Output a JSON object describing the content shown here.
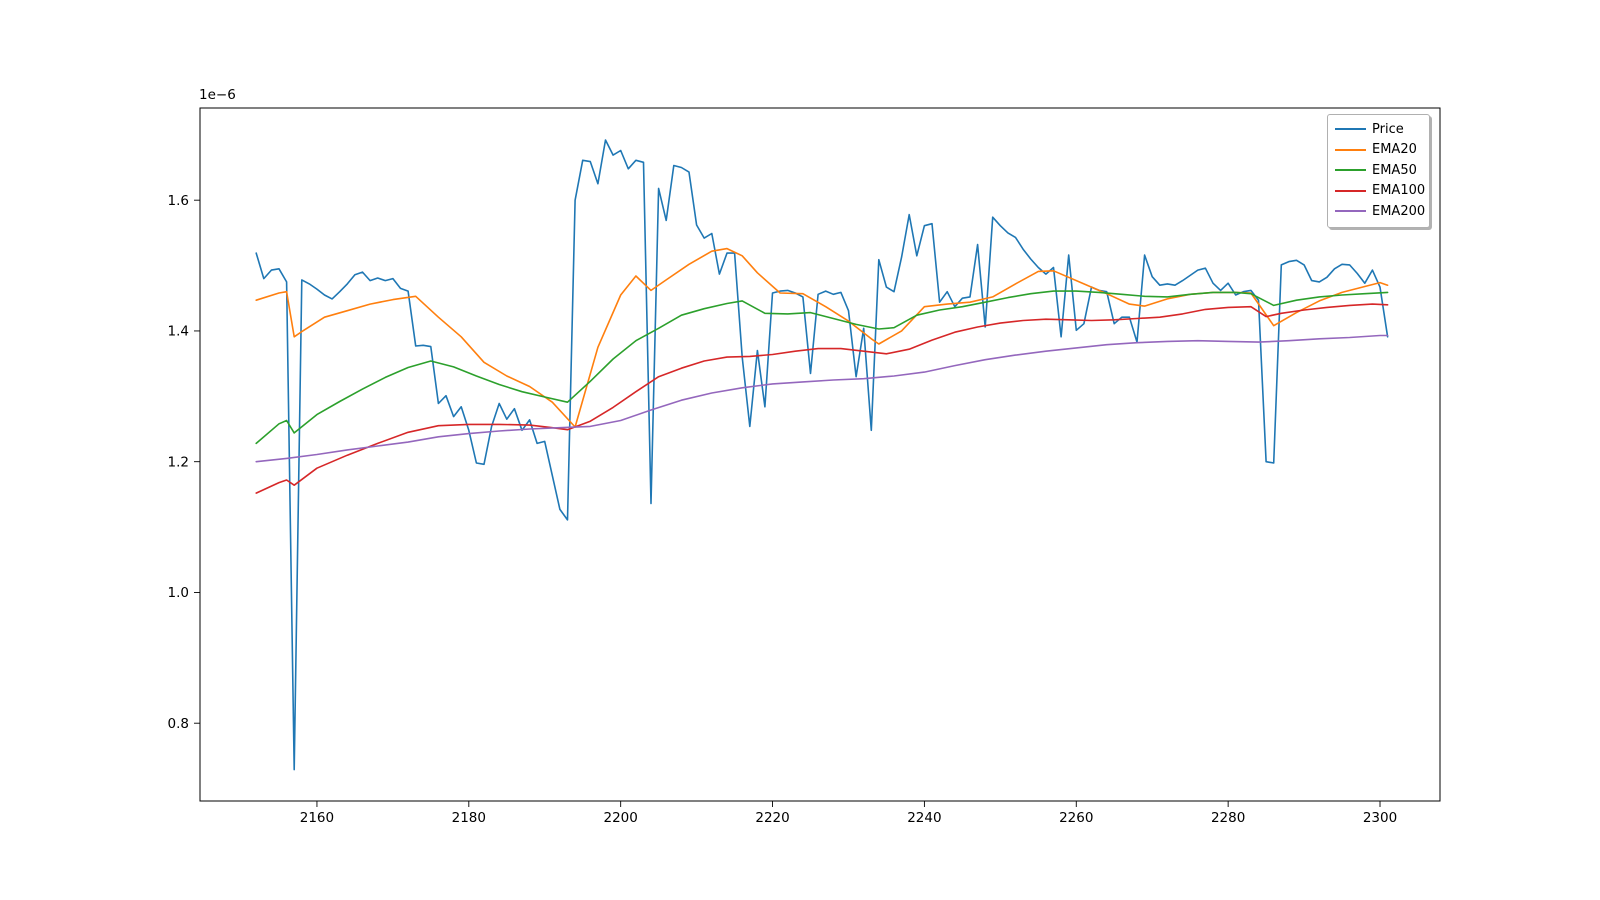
{
  "chart_data": {
    "type": "line",
    "title": "",
    "xlabel": "",
    "ylabel": "",
    "y_offset_label": "1e−6",
    "xlim": [
      2144.6,
      2307.9
    ],
    "ylim": [
      0.681,
      1.741
    ],
    "xticks": [
      2160,
      2180,
      2200,
      2220,
      2240,
      2260,
      2280,
      2300
    ],
    "yticks": [
      0.8,
      1.0,
      1.2,
      1.4,
      1.6
    ],
    "grid": false,
    "legend_position": "upper right",
    "axis_color": "#000000",
    "background_color": "#ffffff",
    "series": [
      {
        "name": "Price",
        "color": "#1f77b4",
        "x_start": 2152,
        "x_step": 1,
        "values": [
          1.519,
          1.48,
          1.493,
          1.495,
          1.475,
          0.729,
          1.478,
          1.472,
          1.464,
          1.455,
          1.449,
          1.46,
          1.472,
          1.486,
          1.49,
          1.477,
          1.481,
          1.477,
          1.48,
          1.465,
          1.461,
          1.377,
          1.378,
          1.376,
          1.289,
          1.301,
          1.269,
          1.284,
          1.248,
          1.198,
          1.196,
          1.254,
          1.289,
          1.265,
          1.281,
          1.248,
          1.264,
          1.228,
          1.231,
          1.179,
          1.127,
          1.111,
          1.6,
          1.661,
          1.659,
          1.625,
          1.692,
          1.669,
          1.676,
          1.648,
          1.661,
          1.658,
          1.136,
          1.618,
          1.569,
          1.653,
          1.65,
          1.643,
          1.562,
          1.542,
          1.549,
          1.487,
          1.519,
          1.519,
          1.36,
          1.254,
          1.37,
          1.284,
          1.458,
          1.461,
          1.462,
          1.458,
          1.452,
          1.335,
          1.456,
          1.461,
          1.456,
          1.459,
          1.431,
          1.33,
          1.404,
          1.248,
          1.509,
          1.467,
          1.46,
          1.513,
          1.578,
          1.515,
          1.561,
          1.564,
          1.444,
          1.46,
          1.437,
          1.45,
          1.452,
          1.532,
          1.406,
          1.574,
          1.561,
          1.55,
          1.543,
          1.525,
          1.51,
          1.497,
          1.487,
          1.497,
          1.391,
          1.516,
          1.401,
          1.411,
          1.467,
          1.462,
          1.46,
          1.411,
          1.421,
          1.421,
          1.383,
          1.516,
          1.483,
          1.47,
          1.472,
          1.47,
          1.477,
          1.485,
          1.493,
          1.496,
          1.473,
          1.462,
          1.473,
          1.455,
          1.46,
          1.462,
          1.447,
          1.2,
          1.198,
          1.501,
          1.506,
          1.508,
          1.501,
          1.477,
          1.475,
          1.482,
          1.495,
          1.502,
          1.501,
          1.488,
          1.473,
          1.493,
          1.467,
          1.391
        ]
      },
      {
        "name": "EMA20",
        "color": "#ff7f0e",
        "points": [
          [
            2152,
            1.447
          ],
          [
            2155,
            1.458
          ],
          [
            2156,
            1.46
          ],
          [
            2157,
            1.391
          ],
          [
            2158,
            1.399
          ],
          [
            2161,
            1.421
          ],
          [
            2164,
            1.431
          ],
          [
            2167,
            1.441
          ],
          [
            2170,
            1.448
          ],
          [
            2173,
            1.453
          ],
          [
            2176,
            1.421
          ],
          [
            2179,
            1.391
          ],
          [
            2182,
            1.352
          ],
          [
            2185,
            1.331
          ],
          [
            2188,
            1.315
          ],
          [
            2191,
            1.291
          ],
          [
            2194,
            1.253
          ],
          [
            2197,
            1.375
          ],
          [
            2200,
            1.455
          ],
          [
            2202,
            1.484
          ],
          [
            2204,
            1.462
          ],
          [
            2206,
            1.478
          ],
          [
            2209,
            1.502
          ],
          [
            2212,
            1.522
          ],
          [
            2214,
            1.526
          ],
          [
            2216,
            1.515
          ],
          [
            2218,
            1.489
          ],
          [
            2221,
            1.458
          ],
          [
            2224,
            1.457
          ],
          [
            2227,
            1.437
          ],
          [
            2230,
            1.415
          ],
          [
            2233,
            1.388
          ],
          [
            2234,
            1.38
          ],
          [
            2237,
            1.4
          ],
          [
            2240,
            1.437
          ],
          [
            2243,
            1.441
          ],
          [
            2246,
            1.444
          ],
          [
            2249,
            1.452
          ],
          [
            2252,
            1.472
          ],
          [
            2255,
            1.491
          ],
          [
            2257,
            1.492
          ],
          [
            2261,
            1.472
          ],
          [
            2264,
            1.457
          ],
          [
            2267,
            1.441
          ],
          [
            2269,
            1.438
          ],
          [
            2272,
            1.449
          ],
          [
            2275,
            1.456
          ],
          [
            2278,
            1.459
          ],
          [
            2281,
            1.459
          ],
          [
            2283,
            1.458
          ],
          [
            2286,
            1.408
          ],
          [
            2289,
            1.428
          ],
          [
            2292,
            1.446
          ],
          [
            2295,
            1.459
          ],
          [
            2298,
            1.468
          ],
          [
            2300,
            1.474
          ],
          [
            2301,
            1.47
          ]
        ]
      },
      {
        "name": "EMA50",
        "color": "#2ca02c",
        "points": [
          [
            2152,
            1.228
          ],
          [
            2155,
            1.258
          ],
          [
            2156,
            1.263
          ],
          [
            2157,
            1.244
          ],
          [
            2160,
            1.272
          ],
          [
            2163,
            1.292
          ],
          [
            2166,
            1.311
          ],
          [
            2169,
            1.329
          ],
          [
            2172,
            1.344
          ],
          [
            2175,
            1.354
          ],
          [
            2178,
            1.345
          ],
          [
            2181,
            1.331
          ],
          [
            2184,
            1.318
          ],
          [
            2187,
            1.307
          ],
          [
            2190,
            1.299
          ],
          [
            2193,
            1.291
          ],
          [
            2196,
            1.323
          ],
          [
            2199,
            1.357
          ],
          [
            2202,
            1.385
          ],
          [
            2205,
            1.404
          ],
          [
            2208,
            1.424
          ],
          [
            2211,
            1.434
          ],
          [
            2214,
            1.442
          ],
          [
            2216,
            1.446
          ],
          [
            2219,
            1.427
          ],
          [
            2222,
            1.426
          ],
          [
            2225,
            1.428
          ],
          [
            2228,
            1.419
          ],
          [
            2231,
            1.41
          ],
          [
            2234,
            1.403
          ],
          [
            2236,
            1.405
          ],
          [
            2239,
            1.424
          ],
          [
            2242,
            1.432
          ],
          [
            2245,
            1.437
          ],
          [
            2248,
            1.444
          ],
          [
            2251,
            1.451
          ],
          [
            2254,
            1.457
          ],
          [
            2257,
            1.461
          ],
          [
            2260,
            1.461
          ],
          [
            2263,
            1.459
          ],
          [
            2266,
            1.456
          ],
          [
            2269,
            1.453
          ],
          [
            2272,
            1.452
          ],
          [
            2275,
            1.456
          ],
          [
            2278,
            1.459
          ],
          [
            2281,
            1.459
          ],
          [
            2283,
            1.457
          ],
          [
            2286,
            1.439
          ],
          [
            2289,
            1.447
          ],
          [
            2292,
            1.452
          ],
          [
            2295,
            1.455
          ],
          [
            2298,
            1.457
          ],
          [
            2301,
            1.459
          ]
        ]
      },
      {
        "name": "EMA100",
        "color": "#d62728",
        "points": [
          [
            2152,
            1.152
          ],
          [
            2155,
            1.168
          ],
          [
            2156,
            1.172
          ],
          [
            2157,
            1.164
          ],
          [
            2160,
            1.19
          ],
          [
            2164,
            1.21
          ],
          [
            2168,
            1.228
          ],
          [
            2172,
            1.245
          ],
          [
            2176,
            1.255
          ],
          [
            2180,
            1.257
          ],
          [
            2184,
            1.257
          ],
          [
            2188,
            1.256
          ],
          [
            2191,
            1.252
          ],
          [
            2193,
            1.249
          ],
          [
            2196,
            1.262
          ],
          [
            2199,
            1.283
          ],
          [
            2202,
            1.307
          ],
          [
            2205,
            1.33
          ],
          [
            2208,
            1.343
          ],
          [
            2211,
            1.354
          ],
          [
            2214,
            1.36
          ],
          [
            2217,
            1.361
          ],
          [
            2220,
            1.364
          ],
          [
            2223,
            1.369
          ],
          [
            2226,
            1.373
          ],
          [
            2229,
            1.373
          ],
          [
            2232,
            1.369
          ],
          [
            2235,
            1.365
          ],
          [
            2238,
            1.372
          ],
          [
            2241,
            1.386
          ],
          [
            2244,
            1.398
          ],
          [
            2247,
            1.406
          ],
          [
            2250,
            1.412
          ],
          [
            2253,
            1.416
          ],
          [
            2256,
            1.418
          ],
          [
            2259,
            1.417
          ],
          [
            2262,
            1.416
          ],
          [
            2265,
            1.417
          ],
          [
            2268,
            1.419
          ],
          [
            2271,
            1.421
          ],
          [
            2274,
            1.426
          ],
          [
            2277,
            1.433
          ],
          [
            2280,
            1.436
          ],
          [
            2283,
            1.437
          ],
          [
            2285,
            1.422
          ],
          [
            2287,
            1.427
          ],
          [
            2290,
            1.432
          ],
          [
            2293,
            1.436
          ],
          [
            2296,
            1.439
          ],
          [
            2299,
            1.441
          ],
          [
            2301,
            1.44
          ]
        ]
      },
      {
        "name": "EMA200",
        "color": "#9467bd",
        "points": [
          [
            2152,
            1.2
          ],
          [
            2156,
            1.205
          ],
          [
            2160,
            1.211
          ],
          [
            2164,
            1.218
          ],
          [
            2168,
            1.224
          ],
          [
            2172,
            1.23
          ],
          [
            2176,
            1.238
          ],
          [
            2180,
            1.243
          ],
          [
            2184,
            1.247
          ],
          [
            2188,
            1.25
          ],
          [
            2192,
            1.252
          ],
          [
            2196,
            1.254
          ],
          [
            2200,
            1.263
          ],
          [
            2204,
            1.279
          ],
          [
            2208,
            1.294
          ],
          [
            2212,
            1.305
          ],
          [
            2216,
            1.313
          ],
          [
            2220,
            1.319
          ],
          [
            2224,
            1.322
          ],
          [
            2228,
            1.325
          ],
          [
            2232,
            1.327
          ],
          [
            2236,
            1.331
          ],
          [
            2240,
            1.337
          ],
          [
            2244,
            1.347
          ],
          [
            2248,
            1.356
          ],
          [
            2252,
            1.363
          ],
          [
            2256,
            1.369
          ],
          [
            2260,
            1.374
          ],
          [
            2264,
            1.379
          ],
          [
            2268,
            1.382
          ],
          [
            2272,
            1.384
          ],
          [
            2276,
            1.385
          ],
          [
            2280,
            1.384
          ],
          [
            2284,
            1.383
          ],
          [
            2288,
            1.385
          ],
          [
            2292,
            1.388
          ],
          [
            2296,
            1.39
          ],
          [
            2300,
            1.393
          ],
          [
            2301,
            1.393
          ]
        ]
      }
    ]
  },
  "legend": {
    "entries": [
      {
        "label": "Price",
        "color": "#1f77b4"
      },
      {
        "label": "EMA20",
        "color": "#ff7f0e"
      },
      {
        "label": "EMA50",
        "color": "#2ca02c"
      },
      {
        "label": "EMA100",
        "color": "#d62728"
      },
      {
        "label": "EMA200",
        "color": "#9467bd"
      }
    ]
  }
}
